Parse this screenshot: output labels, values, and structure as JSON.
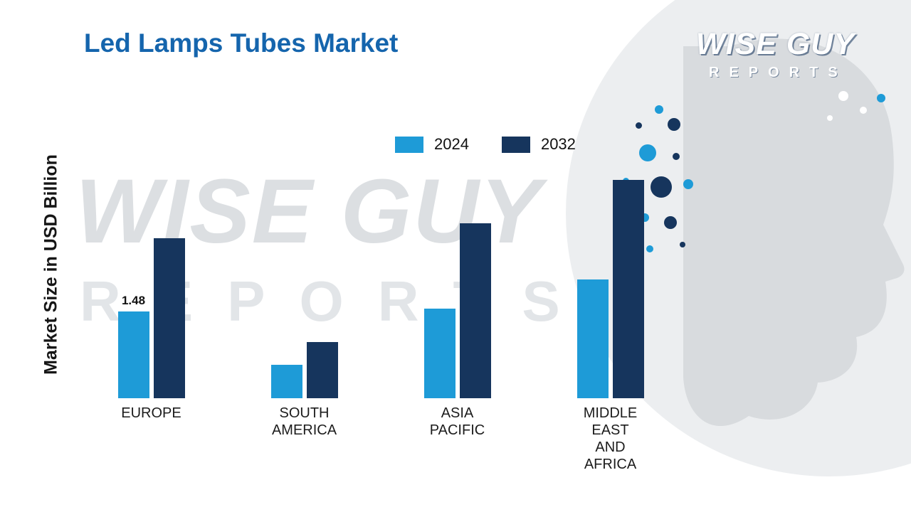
{
  "page": {
    "title": "Led Lamps Tubes Market",
    "y_axis_label": "Market Size in USD Billion"
  },
  "logo": {
    "name_line": "WISE GUY",
    "sub_line": "REPORTS"
  },
  "watermark": {
    "name_line": "WISE GUY",
    "sub_line": "REPORTS"
  },
  "colors": {
    "title": "#1565AD",
    "series_2024": "#1E9BD7",
    "series_2032": "#16355D",
    "background_shape": "#ECEEF0"
  },
  "chart_data": {
    "type": "bar",
    "title": "Led Lamps Tubes Market",
    "ylabel": "Market Size in USD Billion",
    "units": "USD Billion",
    "categories": [
      "EUROPE",
      "SOUTH AMERICA",
      "ASIA PACIFIC",
      "MIDDLE EAST AND AFRICA"
    ],
    "category_lines": [
      [
        "EUROPE"
      ],
      [
        "SOUTH",
        "AMERICA"
      ],
      [
        "ASIA",
        "PACIFIC"
      ],
      [
        "MIDDLE",
        "EAST",
        "AND",
        "AFRICA"
      ]
    ],
    "series": [
      {
        "name": "2024",
        "color": "#1E9BD7",
        "values": [
          1.48,
          0.57,
          1.53,
          2.03
        ]
      },
      {
        "name": "2032",
        "color": "#16355D",
        "values": [
          2.73,
          0.96,
          2.98,
          3.73
        ]
      }
    ],
    "value_labels": [
      [
        "1.48",
        "",
        "",
        ""
      ],
      [
        "",
        "",
        "",
        ""
      ]
    ],
    "ylim": [
      0,
      4
    ],
    "grid": false,
    "legend_position": "top"
  }
}
